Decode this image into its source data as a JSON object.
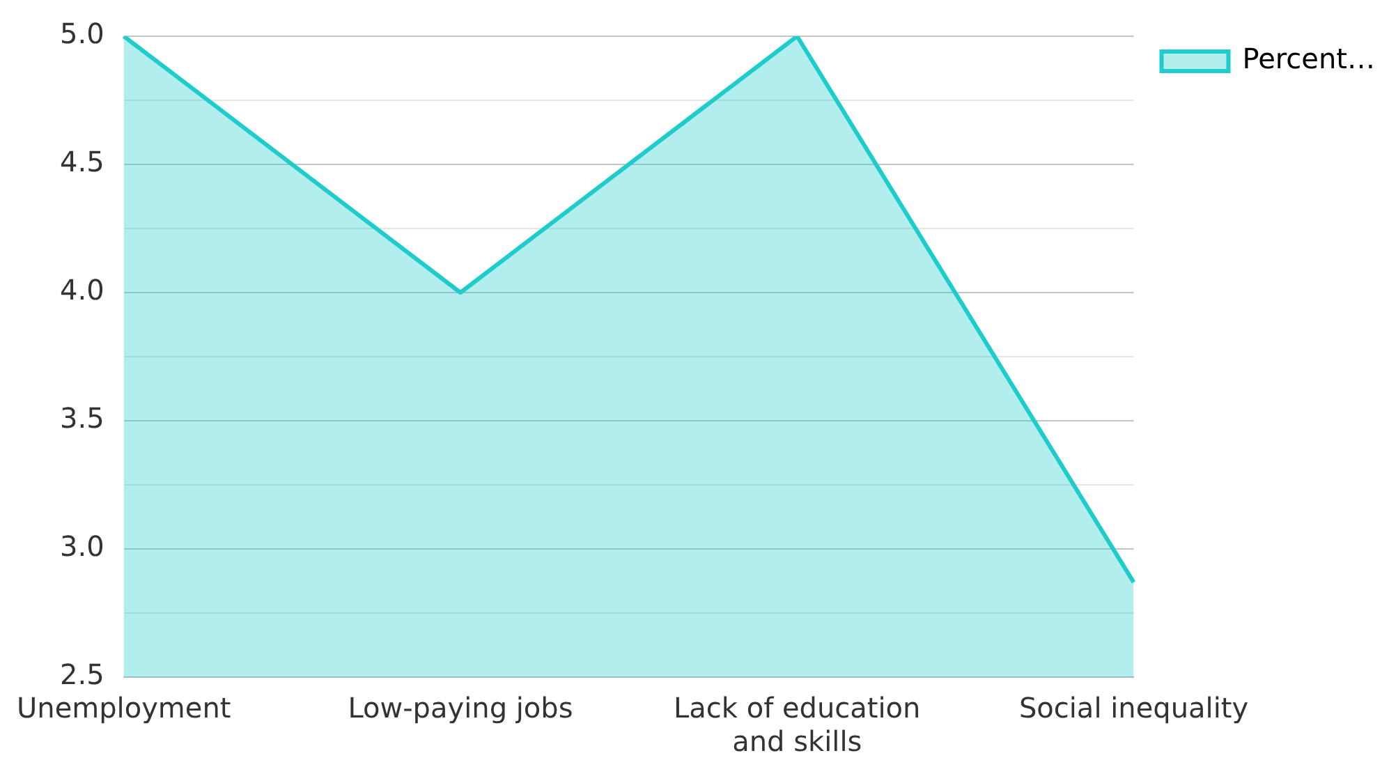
{
  "chart_data": {
    "type": "area",
    "categories": [
      "Unemployment",
      "Low-paying jobs",
      "Lack of education and skills",
      "Social inequality"
    ],
    "series": [
      {
        "name": "Percent…",
        "color": "#1ecccc",
        "values": [
          5.0,
          4.0,
          5.0,
          2.87
        ]
      }
    ],
    "ylim": [
      2.5,
      5.0
    ],
    "yticks": [
      {
        "value": 2.5,
        "label": "2.5"
      },
      {
        "value": 2.75,
        "label": null
      },
      {
        "value": 3.0,
        "label": "3.0"
      },
      {
        "value": 3.25,
        "label": null
      },
      {
        "value": 3.5,
        "label": "3.5"
      },
      {
        "value": 3.75,
        "label": null
      },
      {
        "value": 4.0,
        "label": "4.0"
      },
      {
        "value": 4.25,
        "label": null
      },
      {
        "value": 4.5,
        "label": "4.5"
      },
      {
        "value": 4.75,
        "label": null
      },
      {
        "value": 5.0,
        "label": "5.0"
      }
    ],
    "grid": "y",
    "legend": "top right",
    "marker": "none"
  }
}
